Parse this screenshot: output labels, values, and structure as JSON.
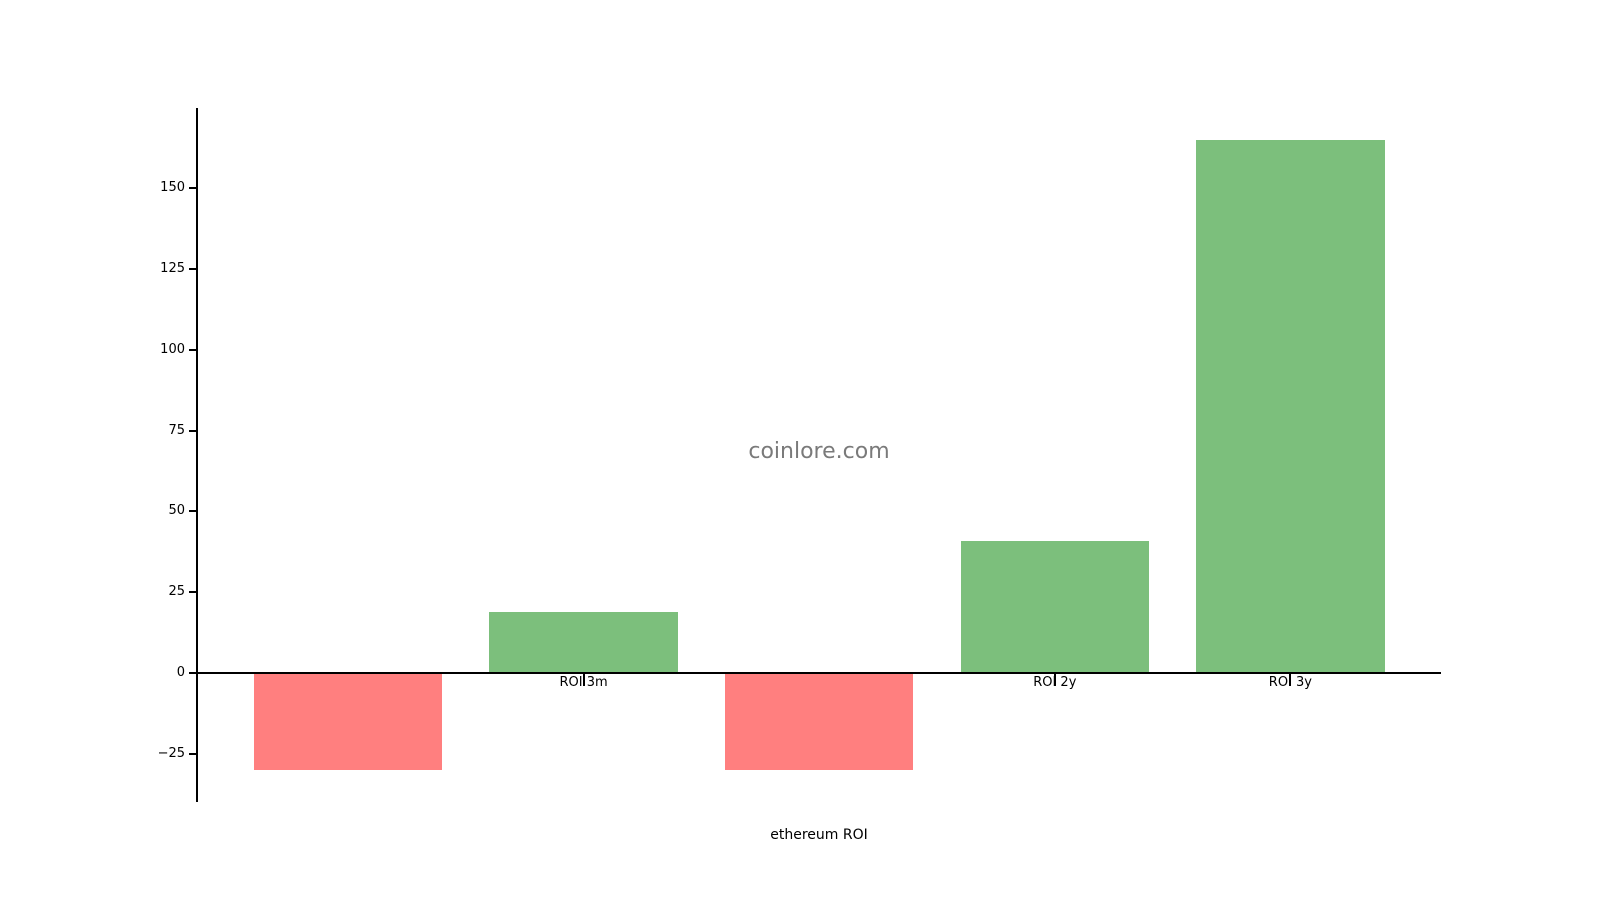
{
  "chart_data": {
    "type": "bar",
    "title": "ethereum ROI",
    "xlabel": "ethereum ROI",
    "ylabel": "",
    "watermark": "coinlore.com",
    "categories": [
      "",
      "ROI 3m",
      "",
      "ROI 2y",
      "ROI 3y"
    ],
    "values": [
      -30,
      19,
      -30,
      41,
      165
    ],
    "positive_color": "#7cbf7c",
    "negative_color": "#ff7f7f",
    "axis_color": "#000000",
    "watermark_color": "#7a7a7a",
    "yticks": [
      150,
      125,
      100,
      75,
      50,
      25,
      0,
      -25
    ],
    "ylim": [
      -39.8,
      174.9
    ],
    "grid": false,
    "legend": null
  }
}
